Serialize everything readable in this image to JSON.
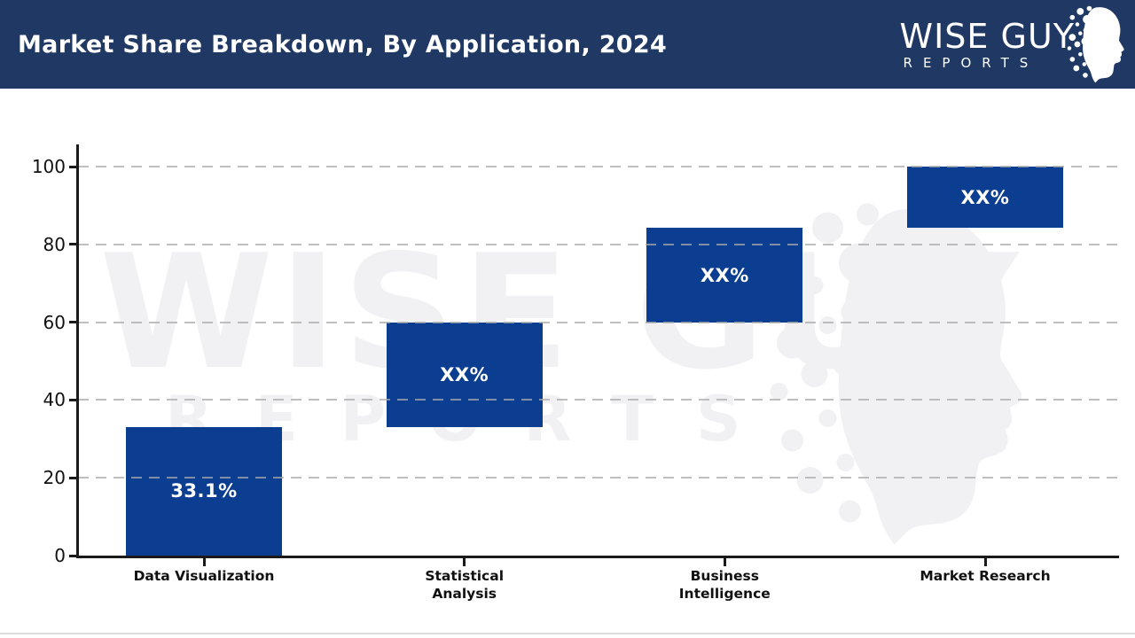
{
  "header": {
    "title": "Market Share Breakdown, By Application, 2024",
    "logo": {
      "line1": "WISE GUY",
      "line2": "REPORTS"
    }
  },
  "watermark": {
    "line1": "WISE GUY",
    "line2": "REPORTS"
  },
  "colors": {
    "header_bg": "#1F3864",
    "bar": "#0B3D91",
    "bar_label": "#FFFFFF",
    "watermark": "#F1F1F4",
    "axis": "#1A1A1A",
    "tick_text": "#111111",
    "bottom_rule": "#DCDCDC"
  },
  "chart_data": {
    "type": "bar",
    "subtype": "waterfall",
    "title": "Market Share Breakdown, By Application, 2024",
    "xlabel": "",
    "ylabel": "",
    "categories": [
      "Data Visualization",
      "Statistical\nAnalysis",
      "Business\nIntelligence",
      "Market Research"
    ],
    "segments": [
      {
        "category": "Data Visualization",
        "start": 0,
        "end": 33.1,
        "label": "33.1%"
      },
      {
        "category": "Statistical Analysis",
        "start": 33.1,
        "end": 59.9,
        "label": "XX%"
      },
      {
        "category": "Business Intelligence",
        "start": 59.9,
        "end": 84.2,
        "label": "XX%"
      },
      {
        "category": "Market Research",
        "start": 84.2,
        "end": 100,
        "label": "XX%"
      }
    ],
    "yticks": [
      0,
      20,
      40,
      60,
      80,
      100
    ],
    "ylim": [
      0,
      105
    ],
    "grid": "horizontal-dashed, drawn over bars",
    "legend": "none"
  }
}
